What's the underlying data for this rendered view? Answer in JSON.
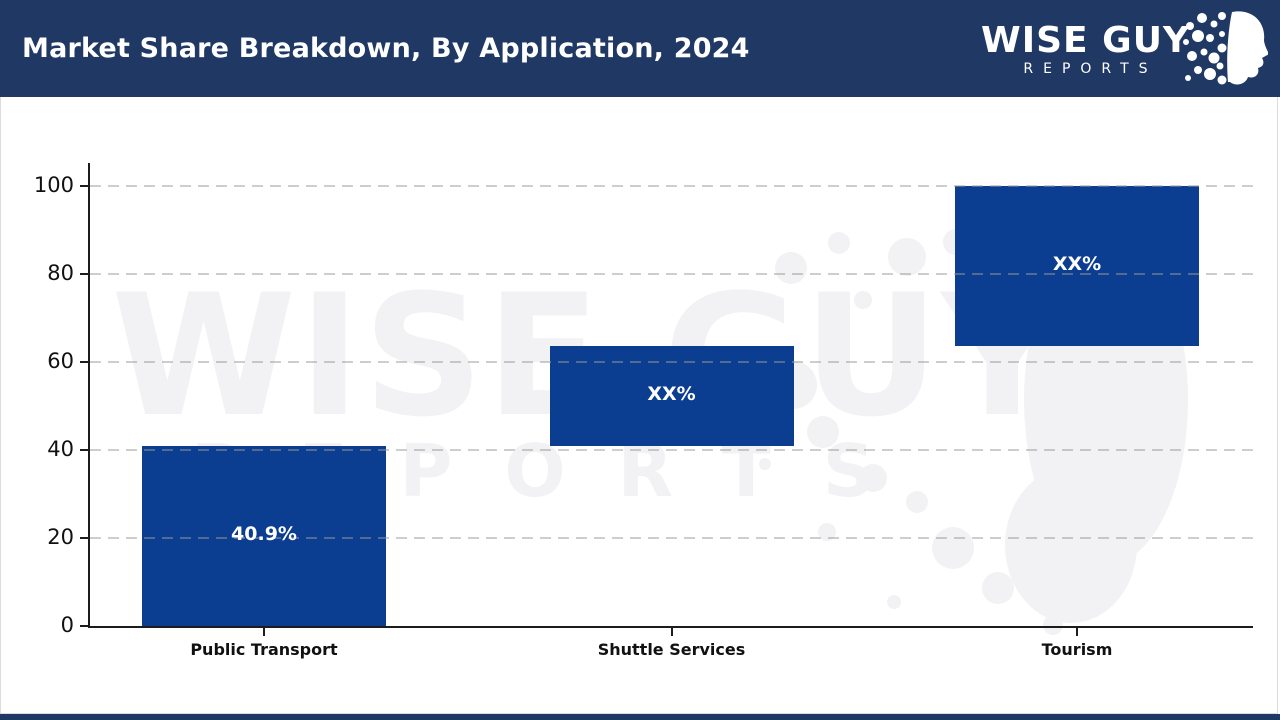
{
  "header": {
    "title": "Market Share Breakdown, By Application, 2024",
    "logo": {
      "name": "WISE GUY",
      "sub": "REPORTS"
    }
  },
  "watermark": {
    "line1": "WISE GUY",
    "line2": "REPORTS"
  },
  "chart_data": {
    "type": "bar",
    "subtype": "waterfall-market-share",
    "title": "Market Share Breakdown, By Application, 2024",
    "categories": [
      "Public Transport",
      "Shuttle Services",
      "Tourism"
    ],
    "series": [
      {
        "category": "Public Transport",
        "start": 0,
        "end": 40.9,
        "value": 40.9,
        "label": "40.9%"
      },
      {
        "category": "Shuttle Services",
        "start": 40.9,
        "end": 63.6,
        "value": 22.7,
        "label": "XX%"
      },
      {
        "category": "Tourism",
        "start": 63.6,
        "end": 100,
        "value": 36.4,
        "label": "XX%"
      }
    ],
    "xlabel": "",
    "ylabel": "",
    "ylim": [
      0,
      100
    ],
    "yticks": [
      0,
      20,
      40,
      60,
      80,
      100
    ],
    "grid": "horizontal-dashed",
    "legend": "none",
    "bar_color": "#0b3d91",
    "bar_label_color": "#ffffff"
  },
  "colors": {
    "header_bg": "#1f3864",
    "footer_bg": "#1f3864",
    "panel_bg": "#ffffff",
    "panel_border": "#dcdcdc",
    "bar": "#0b3d91",
    "axis": "#1c1c1c",
    "grid": "#d5d5d5",
    "watermark": "#f2f2f4"
  }
}
